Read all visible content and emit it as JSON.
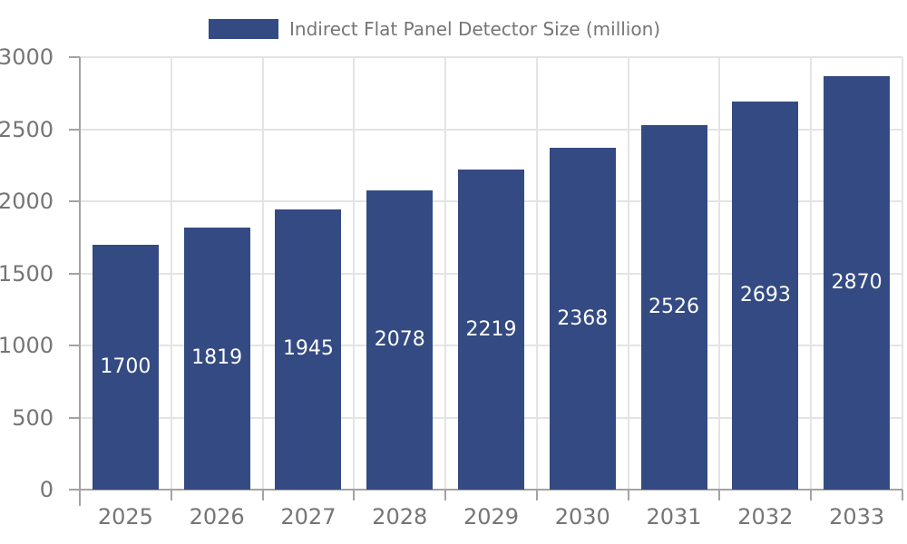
{
  "chart_data": {
    "type": "bar",
    "series_name": "Indirect Flat Panel Detector Size (million)",
    "categories": [
      "2025",
      "2026",
      "2027",
      "2028",
      "2029",
      "2030",
      "2031",
      "2032",
      "2033"
    ],
    "values": [
      1700,
      1819,
      1945,
      2078,
      2219,
      2368,
      2526,
      2693,
      2870
    ],
    "ylim": [
      0,
      3000
    ],
    "yticks": [
      0,
      500,
      1000,
      1500,
      2000,
      2500,
      3000
    ],
    "xlabel": "",
    "ylabel": "",
    "grid": true,
    "legend_position": "top",
    "value_labels": "inside-center",
    "colors": {
      "bar": "#344a82",
      "value_label": "#ffffff",
      "tick_label": "#757575",
      "legend_label": "#757575",
      "gridline": "#e4e4e4",
      "axis": "#a3a3a3",
      "background": "#ffffff"
    }
  }
}
